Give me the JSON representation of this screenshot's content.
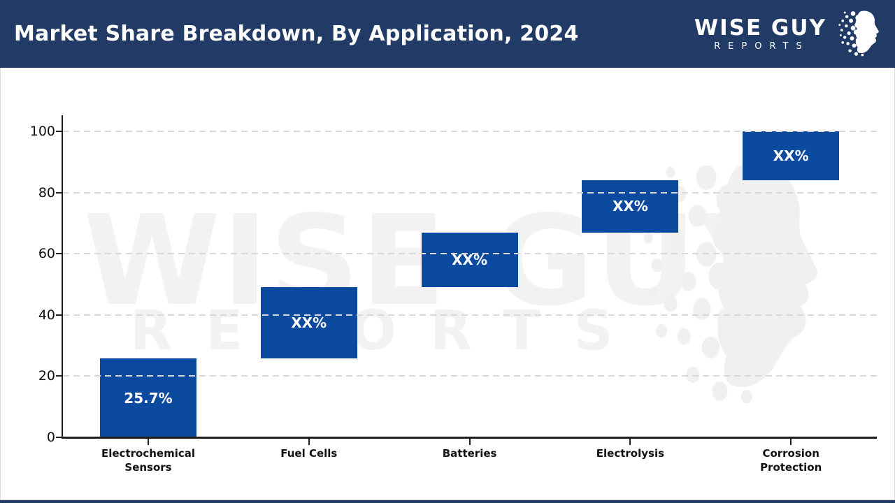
{
  "header": {
    "title": "Market Share Breakdown, By Application, 2024",
    "logo": {
      "line1": "WISE GUY",
      "line2": "REPORTS"
    }
  },
  "watermark": {
    "line1": "WISE GUY",
    "line2": "REPORTS"
  },
  "colors": {
    "header_bg": "#213a66",
    "footer_bg": "#213a66",
    "bar_fill": "#0c4aa0",
    "bar_label_text": "#ffffff",
    "axis_line": "#1f1f1f",
    "tick_label_text": "#111111",
    "category_label_text": "#111111",
    "gridline": "#d9d9d9",
    "watermark_text": "#f2f2f2",
    "title_text": "#ffffff",
    "logo_text": "#ffffff"
  },
  "chart_data": {
    "type": "bar",
    "subtype": "waterfall",
    "title": "Market Share Breakdown, By Application, 2024",
    "categories": [
      "Electrochemical Sensors",
      "Fuel Cells",
      "Batteries",
      "Electrolysis",
      "Corrosion Protection"
    ],
    "segments": [
      {
        "start": 0,
        "end": 25.7
      },
      {
        "start": 25.7,
        "end": 49
      },
      {
        "start": 49,
        "end": 67
      },
      {
        "start": 67,
        "end": 84
      },
      {
        "start": 84,
        "end": 100
      }
    ],
    "bar_labels": [
      "25.7%",
      "XX%",
      "XX%",
      "XX%",
      "XX%"
    ],
    "xlabel": "",
    "ylabel": "",
    "ylim": [
      0,
      100
    ],
    "yticks": [
      0,
      20,
      40,
      60,
      80,
      100
    ],
    "grid": "horizontal-dashed",
    "legend": "none"
  }
}
